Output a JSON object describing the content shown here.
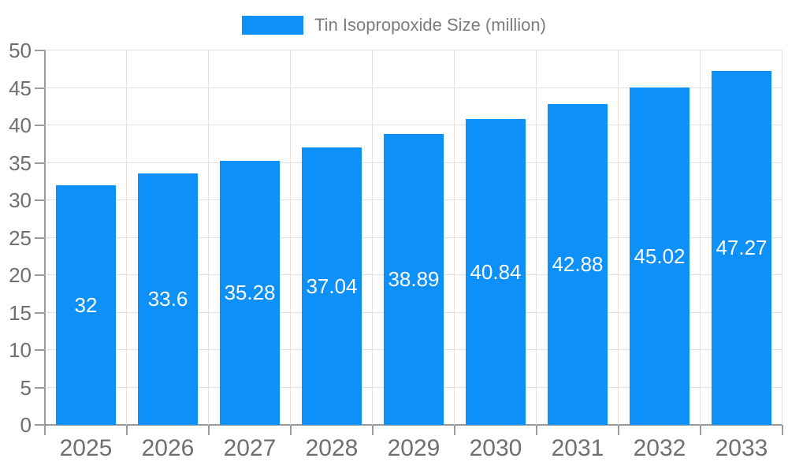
{
  "chart_data": {
    "type": "bar",
    "title": "Tin Isopropoxide Size (million)",
    "legend": {
      "label": "Tin Isopropoxide Size (million)",
      "position": "top"
    },
    "categories": [
      "2025",
      "2026",
      "2027",
      "2028",
      "2029",
      "2030",
      "2031",
      "2032",
      "2033"
    ],
    "series": [
      {
        "name": "Tin Isopropoxide Size (million)",
        "values": [
          32,
          33.6,
          35.28,
          37.04,
          38.89,
          40.84,
          42.88,
          45.02,
          47.27
        ],
        "labels": [
          "32",
          "33.6",
          "35.28",
          "37.04",
          "38.89",
          "40.84",
          "42.88",
          "45.02",
          "47.27"
        ]
      }
    ],
    "xlabel": "",
    "ylabel": "",
    "ylim": [
      0,
      50
    ],
    "ytick_step": 5,
    "ytick_labels": [
      "0",
      "5",
      "10",
      "15",
      "20",
      "25",
      "30",
      "35",
      "40",
      "45",
      "50"
    ],
    "grid": {
      "horizontal": true,
      "vertical": true
    },
    "colors": {
      "bar": "#0d90f8",
      "grid": "#e0e0e0",
      "axis": "#9a9a9a",
      "tick_text": "#6f6f6f",
      "legend_text": "#7d7d7d",
      "bar_label_text": "#ffffff",
      "background": "#ffffff"
    }
  }
}
